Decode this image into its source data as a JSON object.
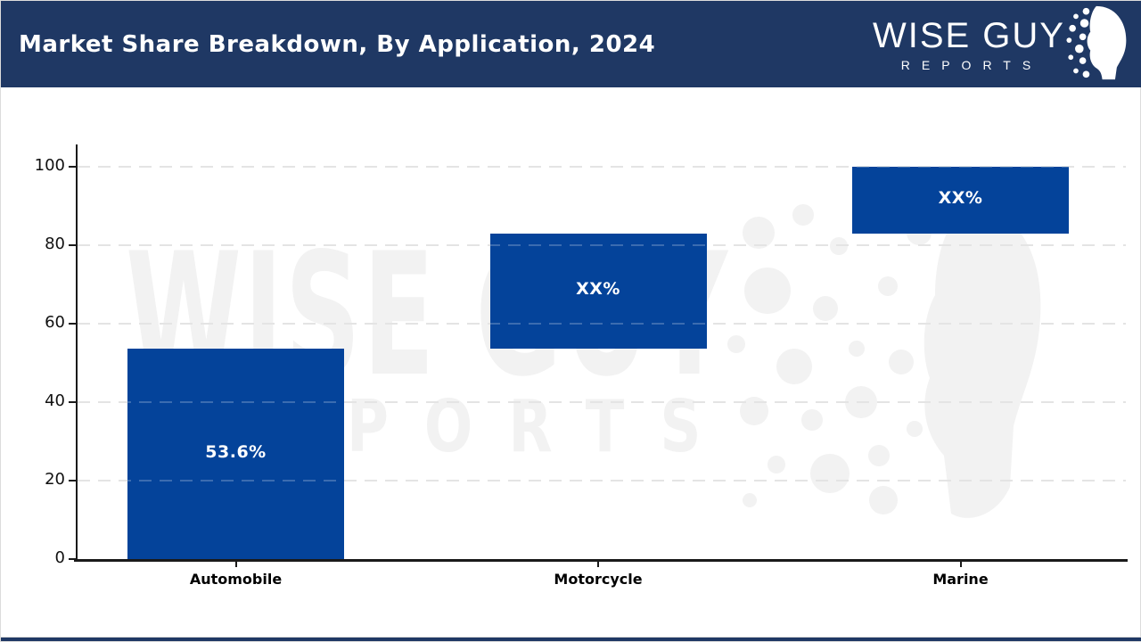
{
  "header": {
    "title": "Market Share Breakdown, By Application, 2024",
    "logo": {
      "line1": "WISE GUY",
      "line2": "REPORTS"
    }
  },
  "watermark": {
    "line1": "WISE GUY",
    "line2": "REPORTS"
  },
  "colors": {
    "header_bg": "#1f3864",
    "bar": "#04439a",
    "grid": "#dcdcdc",
    "axis": "#1a1a1a",
    "bar_label_text": "#ffffff",
    "watermark": "#f2f2f2"
  },
  "chart_data": {
    "type": "bar",
    "subtype": "waterfall",
    "title": "Market Share Breakdown, By Application, 2024",
    "categories": [
      "Automobile",
      "Motorcycle",
      "Marine"
    ],
    "series": [
      {
        "name": "Market Share",
        "segments": [
          {
            "category": "Automobile",
            "start": 0,
            "end": 53.6,
            "label": "53.6%"
          },
          {
            "category": "Motorcycle",
            "start": 53.6,
            "end": 83,
            "label": "XX%"
          },
          {
            "category": "Marine",
            "start": 83,
            "end": 100,
            "label": "XX%"
          }
        ]
      }
    ],
    "xlabel": "",
    "ylabel": "",
    "ylim": [
      0,
      100
    ],
    "yticks": [
      0,
      20,
      40,
      60,
      80,
      100
    ],
    "grid": "dashed-horizontal",
    "legend": "none"
  }
}
